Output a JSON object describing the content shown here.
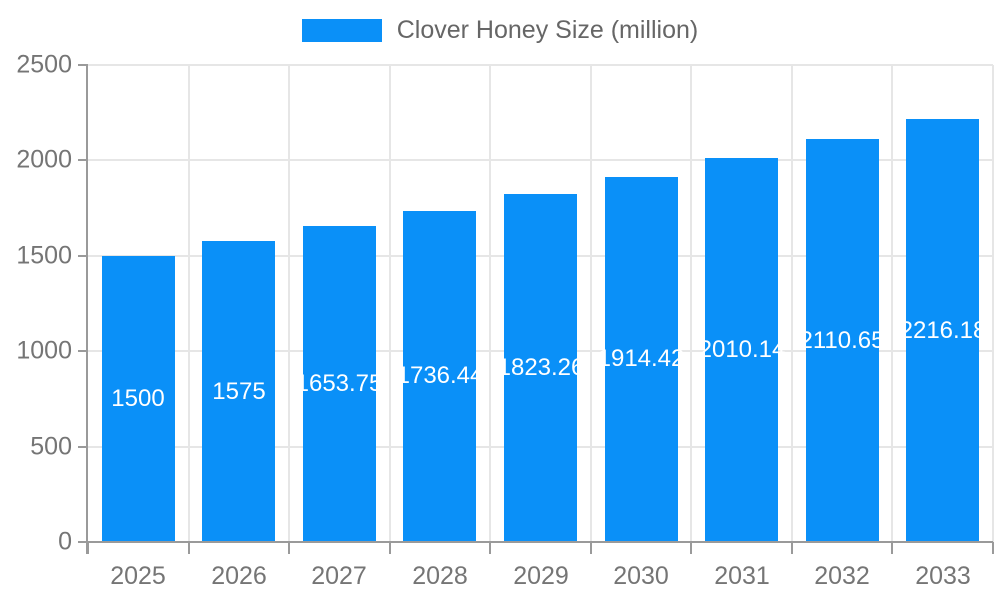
{
  "legend": {
    "label": "Clover Honey Size (million)"
  },
  "colors": {
    "bar": "#0a90f8",
    "grid": "#e6e6e6",
    "axis": "#9a9a9a",
    "tick_text": "#757575",
    "legend_text": "#666666",
    "bar_label_text": "#ffffff",
    "background": "#ffffff"
  },
  "chart_data": {
    "type": "bar",
    "title": "Clover Honey Size (million)",
    "categories": [
      "2025",
      "2026",
      "2027",
      "2028",
      "2029",
      "2030",
      "2031",
      "2032",
      "2033"
    ],
    "values": [
      1500,
      1575,
      1653.75,
      1736.44,
      1823.26,
      1914.42,
      2010.14,
      2110.65,
      2216.18
    ],
    "value_labels": [
      "1500",
      "1575",
      "1653.75",
      "1736.44",
      "1823.26",
      "1914.42",
      "2010.14",
      "2110.65",
      "2216.18"
    ],
    "series_name": "Clover Honey Size (million)",
    "xlabel": "",
    "ylabel": "",
    "ylim": [
      0,
      2500
    ],
    "yticks": [
      0,
      500,
      1000,
      1500,
      2000,
      2500
    ],
    "ytick_labels": [
      "0",
      "500",
      "1000",
      "1500",
      "2000",
      "2500"
    ],
    "grid": true,
    "legend_position": "top",
    "bar_label_position": "center"
  }
}
